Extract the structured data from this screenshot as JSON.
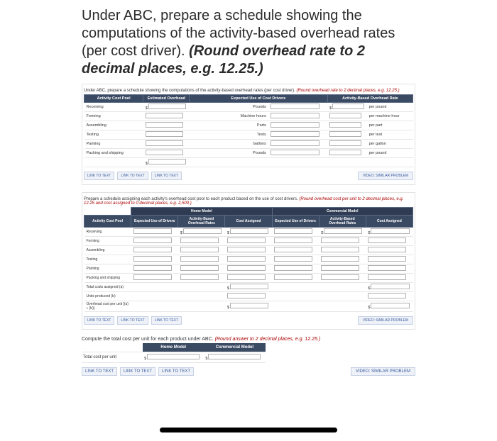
{
  "question": {
    "line1": "Under ABC, prepare a schedule showing the computations of the activity-based overhead rates (per cost driver).",
    "line2_bold": " (Round overhead rate to 2 decimal places, e.g. 12.25.)"
  },
  "section1": {
    "instr_plain": "Under ABC, prepare a schedule showing the computations of the activity-based overhead rates (per cost driver). ",
    "instr_red": "(Round overhead rate to 2 decimal places, e.g. 12.25.)",
    "headers": {
      "pool": "Activity Cost Pool",
      "est_ovh": "Estimated Overhead",
      "exp_drv": "Expected Use of Cost Drivers",
      "rate": "Activity-Based Overhead Rate"
    },
    "rows": [
      {
        "pool": "Receiving",
        "driver": "Pounds",
        "unit": "per pound"
      },
      {
        "pool": "Forming",
        "driver": "Machine hours",
        "unit": "per machine hour"
      },
      {
        "pool": "Assembling",
        "driver": "Parts",
        "unit": "per part"
      },
      {
        "pool": "Testing",
        "driver": "Tests",
        "unit": "per test"
      },
      {
        "pool": "Painting",
        "driver": "Gallons",
        "unit": "per gallon"
      },
      {
        "pool": "Packing and shipping",
        "driver": "Pounds",
        "unit": "per pound"
      }
    ],
    "links": [
      "LINK TO TEXT",
      "LINK TO TEXT",
      "LINK TO TEXT"
    ],
    "video": "VIDEO: SIMILAR PROBLEM"
  },
  "section2": {
    "instr_plain": "Prepare a schedule assigning each activity's overhead cost pool to each product based on the use of cost drivers. ",
    "instr_red": "(Round overhead cost per unit to 2 decimal places, e.g. 12.25 and cost assigned to 0 decimal places, e.g. 2,500.)",
    "group_home": "Home Model",
    "group_comm": "Commercial Model",
    "headers": {
      "pool": "Activity Cost Pool",
      "exp_use": "Expected Use of Drivers",
      "rate": "Activity-Based Overhead Rates",
      "cost": "Cost Assigned",
      "exp_use2": "Expected Use of Drivers",
      "rate2": "Activity-Based Overhead Rates",
      "cost2": "Cost Assigned"
    },
    "rows": [
      "Receiving",
      "Forming",
      "Assembling",
      "Testing",
      "Painting",
      "Packing and shipping",
      "Total costs assigned (a)",
      "Units produced (b)",
      "Overhead cost per unit [(a) ÷ (b)]"
    ],
    "links": [
      "LINK TO TEXT",
      "LINK TO TEXT",
      "LINK TO TEXT"
    ],
    "video": "VIDEO: SIMILAR PROBLEM"
  },
  "section3": {
    "instr_plain": "Compute the total cost per unit for each product under ABC. ",
    "instr_red": "(Round answer to 2 decimal places, e.g. 12.25.)",
    "col_home": "Home Model",
    "col_comm": "Commercial Model",
    "row_label": "Total cost per unit",
    "links": [
      "LINK TO TEXT",
      "LINK TO TEXT",
      "LINK TO TEXT"
    ],
    "video": "VIDEO: SIMILAR PROBLEM"
  },
  "colors": {
    "header_bg": "#3b4a63",
    "header_bg_dark": "#2e3b52",
    "link_bg": "#eef2f8",
    "link_border": "#c4d0e4",
    "link_text": "#3b5ca0",
    "red": "#a00"
  }
}
